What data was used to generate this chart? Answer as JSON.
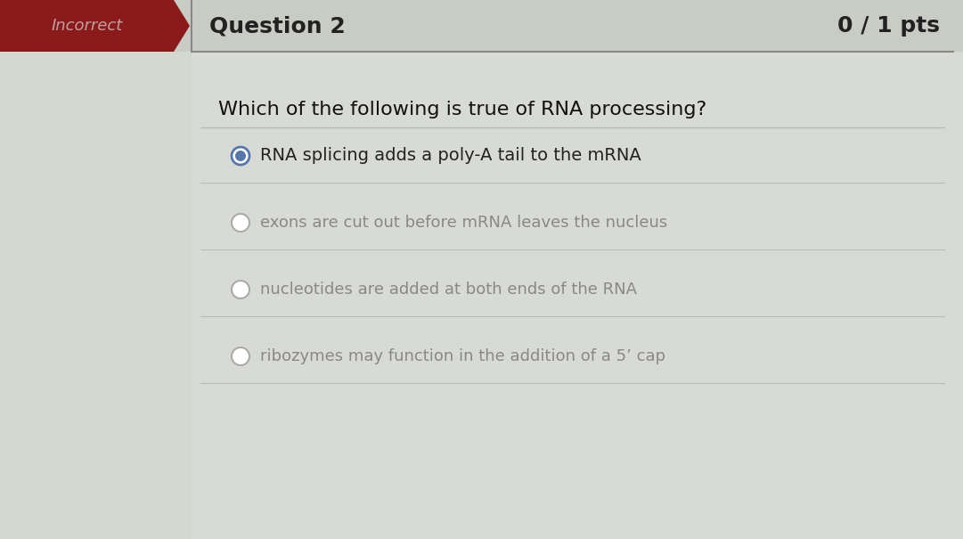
{
  "bg_color": "#d4d8d0",
  "header_bg": "#c8ccc4",
  "incorrect_label": "Incorrect",
  "incorrect_bg": "#8b1a1a",
  "incorrect_text_color": "#c0a0a0",
  "question_label": "Question 2",
  "pts_label": "0 / 1 pts",
  "question_text": "Which of the following is true of RNA processing?",
  "answer_options": [
    "RNA splicing adds a poly-A tail to the mRNA",
    "exons are cut out before mRNA leaves the nucleus",
    "nucleotides are added at both ends of the RNA",
    "ribozymes may function in the addition of a 5’ cap"
  ],
  "selected_index": 0,
  "selected_radio_color": "#5577aa",
  "unselected_radio_color": "#aaaaaa",
  "selected_text_color": "#222222",
  "unselected_text_color": "#888888",
  "divider_color": "#bbbbbb",
  "header_divider_color": "#888888",
  "question_fontsize": 14,
  "option_fontsize": 12,
  "header_fontsize": 16,
  "pts_fontsize": 16
}
